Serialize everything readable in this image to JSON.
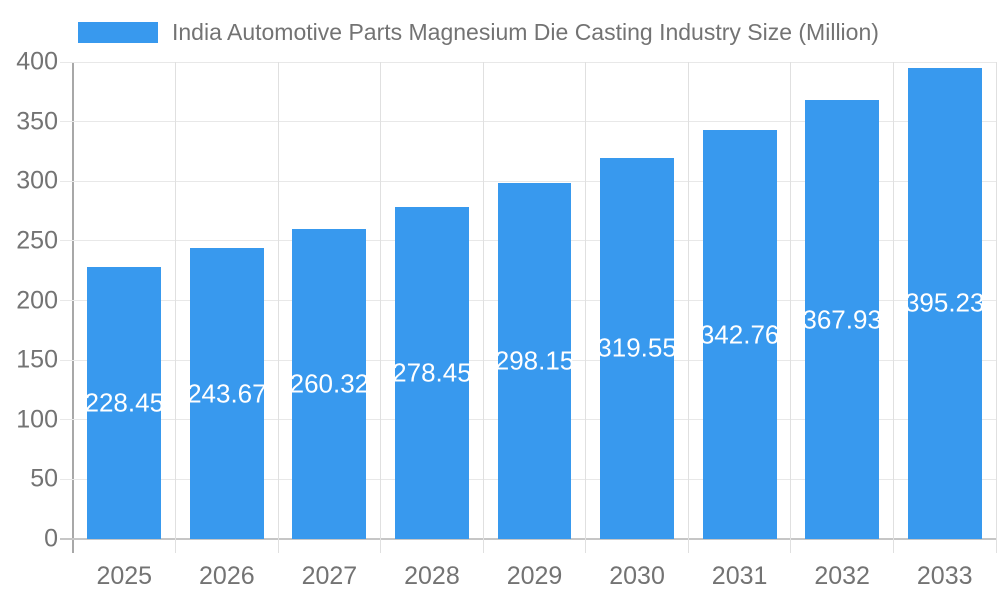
{
  "chart_data": {
    "type": "bar",
    "title": "India Automotive Parts Magnesium Die Casting Industry Size (Million)",
    "categories": [
      "2025",
      "2026",
      "2027",
      "2028",
      "2029",
      "2030",
      "2031",
      "2032",
      "2033"
    ],
    "values": [
      228.45,
      243.67,
      260.32,
      278.45,
      298.15,
      319.55,
      342.76,
      367.93,
      395.23
    ],
    "xlabel": "",
    "ylabel": "",
    "ylim": [
      0,
      400
    ],
    "yticks": [
      0,
      50,
      100,
      150,
      200,
      250,
      300,
      350,
      400
    ],
    "grid": true,
    "legend_position": "top-left",
    "value_labels": "inside-center",
    "colors": {
      "bar": "#3899ee",
      "grid_horizontal": "#e8e8e8",
      "grid_vertical": "#e0e0e0",
      "baseline": "#c6c6c6",
      "axis": "#a8a8a8",
      "tick_label": "#737373",
      "value_label": "#ffffff",
      "background": "#ffffff"
    }
  }
}
